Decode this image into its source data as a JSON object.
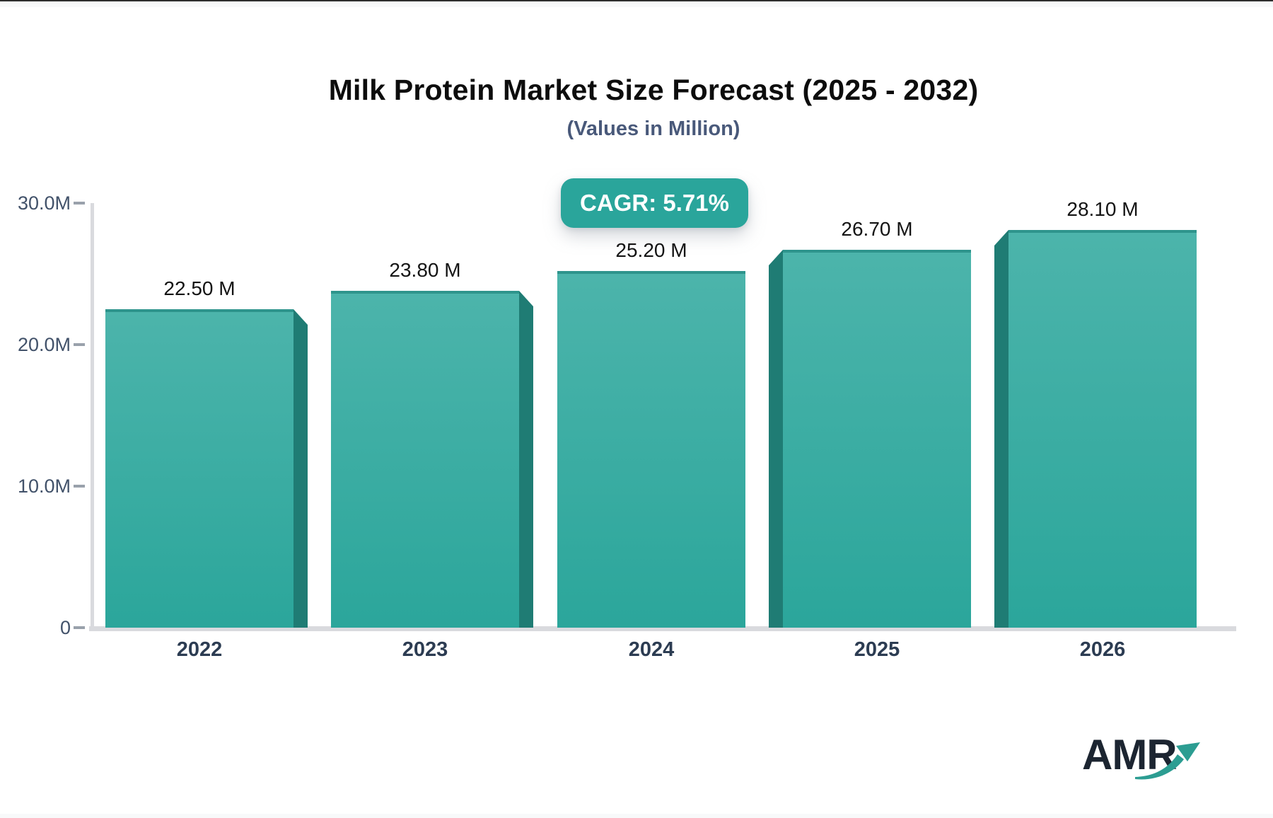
{
  "page": {
    "top_border_color": "#2e2e2e"
  },
  "chart": {
    "title": "Milk Protein Market Size Forecast (2025 - 2032)",
    "subtitle": "(Values in Million)",
    "cagr_label": "CAGR: 5.71%"
  },
  "chart_data": {
    "type": "bar",
    "title": "Milk Protein Market Size Forecast (2025 - 2032)",
    "subtitle": "(Values in Million)",
    "annotation": "CAGR: 5.71%",
    "unit": "Million",
    "categories": [
      "2022",
      "2023",
      "2024",
      "2025",
      "2026"
    ],
    "values": [
      22.5,
      23.8,
      25.2,
      26.7,
      28.1
    ],
    "bar_labels": [
      "22.50 M",
      "23.80 M",
      "25.20 M",
      "26.70 M",
      "28.10 M"
    ],
    "y_axis": {
      "range": [
        0,
        30
      ],
      "ticks": [
        {
          "label": "30.0M",
          "value": 30
        },
        {
          "label": "20.0M",
          "value": 20
        },
        {
          "label": "10.0M",
          "value": 10
        },
        {
          "label": "0",
          "value": 0
        }
      ]
    },
    "grid": false,
    "legend": false,
    "colors": {
      "bar_face_top": "#4cb4ab",
      "bar_face_bottom": "#2ba69b",
      "bar_side": "#1f7c74",
      "bar_top_edge": "#2e948c",
      "badge_bg": "#2aa59b",
      "axis_line": "#d9dade",
      "tick_mark": "#99a1ab",
      "logo_arrow": "#2c9d92"
    }
  },
  "logo": {
    "text": "AMR"
  }
}
